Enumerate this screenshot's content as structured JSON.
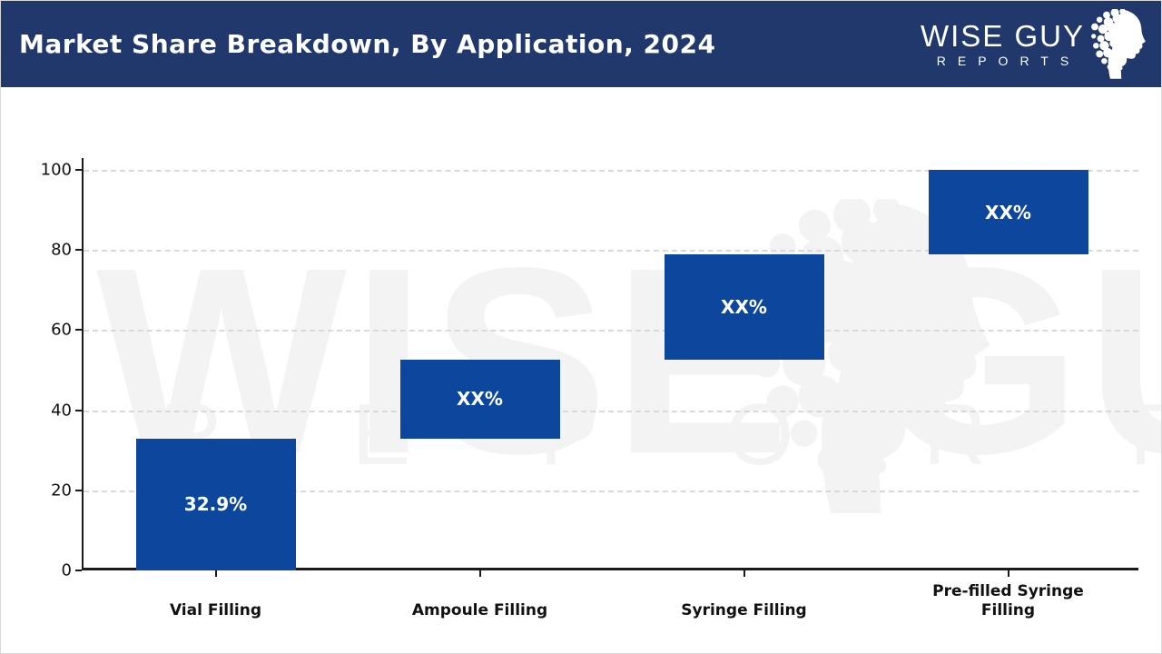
{
  "header": {
    "title": "Market Share Breakdown, By Application, 2024",
    "logo": {
      "line1": "WISE GUY",
      "line2": "REPORTS"
    }
  },
  "watermark": {
    "big_text": "WISE GU",
    "row_text": "R E P O R T S"
  },
  "chart_data": {
    "type": "bar",
    "subtype": "waterfall",
    "title": "Market Share Breakdown, By Application, 2024",
    "categories": [
      "Vial Filling",
      "Ampoule Filling",
      "Syringe Filling",
      "Pre-filled Syringe Filling"
    ],
    "segments": [
      {
        "category": "Vial Filling",
        "start": 0,
        "end": 32.9,
        "label": "32.9%"
      },
      {
        "category": "Ampoule Filling",
        "start": 32.9,
        "end": 52.7,
        "label": "XX%"
      },
      {
        "category": "Syringe Filling",
        "start": 52.7,
        "end": 78.8,
        "label": "XX%"
      },
      {
        "category": "Pre-filled Syringe Filling",
        "start": 78.8,
        "end": 100,
        "label": "XX%"
      }
    ],
    "xlabel": "",
    "ylabel": "",
    "ylim": [
      0,
      100
    ],
    "yticks": [
      0,
      20,
      40,
      60,
      80,
      100
    ],
    "grid": "horizontal-dashed",
    "legend": "none",
    "bar_color": "#0c479d",
    "colors": {
      "header_bg": "#20386b",
      "axis": "#1a1a1a",
      "gridline": "#d9d9d9",
      "watermark": "#f3f3f3",
      "bar_label_text": "#ffffff",
      "tick_text": "#111111"
    }
  }
}
